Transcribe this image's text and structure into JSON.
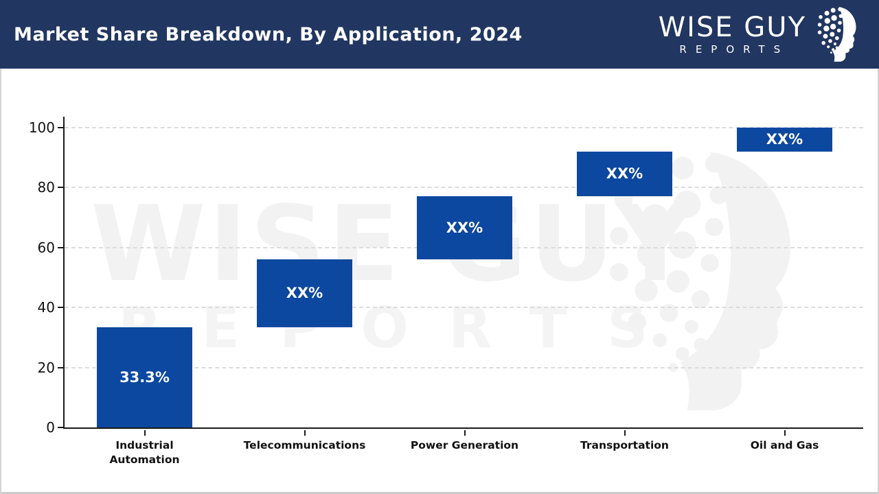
{
  "header": {
    "title": "Market Share Breakdown, By Application, 2024",
    "logo": {
      "line1": "WISE GUY",
      "line2": "REPORTS"
    },
    "bg_color": "#213660"
  },
  "watermark": {
    "line1": "WISE GUY",
    "line2": "REPORTS"
  },
  "chart_data": {
    "type": "bar",
    "variant": "waterfall",
    "title": "Market Share Breakdown, By Application, 2024",
    "xlabel": "",
    "ylabel": "",
    "categories": [
      "Industrial\nAutomation",
      "Telecommunications",
      "Power Generation",
      "Transportation",
      "Oil and Gas"
    ],
    "bars": [
      {
        "category": "Industrial Automation",
        "start": 0,
        "end": 33.3,
        "label": "33.3%"
      },
      {
        "category": "Telecommunications",
        "start": 33.3,
        "end": 56.1,
        "label": "XX%"
      },
      {
        "category": "Power Generation",
        "start": 56.1,
        "end": 77.0,
        "label": "XX%"
      },
      {
        "category": "Transportation",
        "start": 77.0,
        "end": 92.0,
        "label": "XX%"
      },
      {
        "category": "Oil and Gas",
        "start": 92.0,
        "end": 100.0,
        "label": "XX%"
      }
    ],
    "yticks": [
      0,
      20,
      40,
      60,
      80,
      100
    ],
    "ylim": [
      0,
      104
    ],
    "grid": "horizontal-dashed",
    "legend": "none",
    "bar_color": "#0c489f",
    "bar_label_color": "#ffffff",
    "axis_color": "#1a1a1a",
    "gridline_color": "#dcdcdc"
  }
}
